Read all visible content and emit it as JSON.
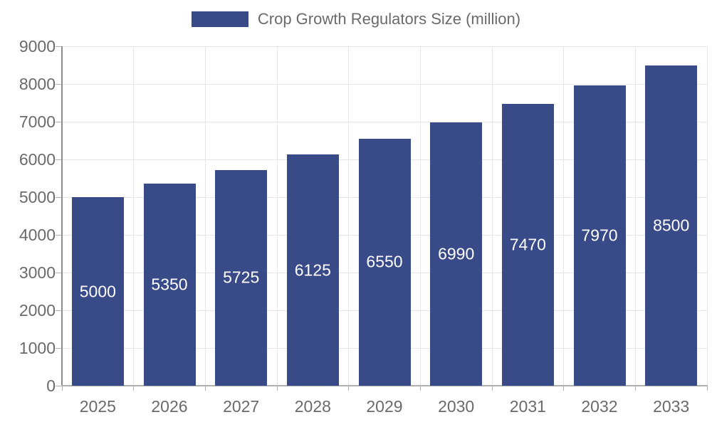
{
  "chart_data": {
    "type": "bar",
    "title": "Crop Growth Regulators Size (million)",
    "legend": "Crop Growth Regulators Size (million)",
    "legend_position": "top-center",
    "categories": [
      "2025",
      "2026",
      "2027",
      "2028",
      "2029",
      "2030",
      "2031",
      "2032",
      "2033"
    ],
    "values": [
      5000,
      5350,
      5725,
      6125,
      6550,
      6990,
      7470,
      7970,
      8500
    ],
    "xlabel": "",
    "ylabel": "",
    "ylim": [
      0,
      9000
    ],
    "ytick_step": 1000,
    "grid": true,
    "bar_labels_inside": true
  },
  "colors": {
    "bar": "#394a88",
    "bar_value_text": "#ffffff",
    "axis_text": "#6a6a6a",
    "gridline": "#e6e6e6",
    "y_axis_line": "#8c8c8c",
    "x_axis_line": "#b0b0b0",
    "tick": "#b0b0b0",
    "background": "#ffffff"
  }
}
